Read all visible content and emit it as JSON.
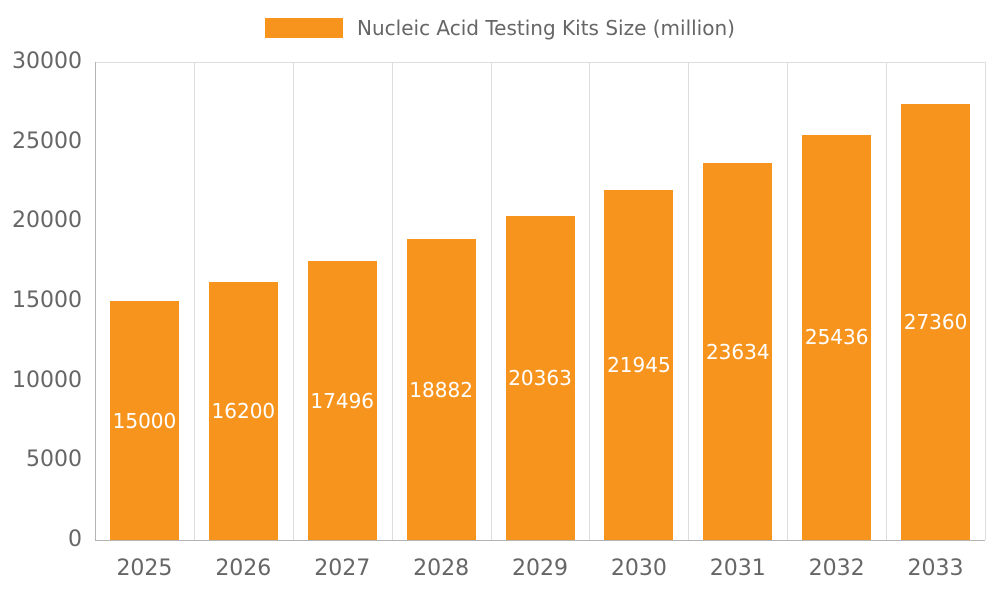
{
  "page": {
    "background": "#ffffff"
  },
  "chart_data": {
    "type": "bar",
    "title": "Nucleic Acid Testing Kits Size (million)",
    "categories": [
      "2025",
      "2026",
      "2027",
      "2028",
      "2029",
      "2030",
      "2031",
      "2032",
      "2033"
    ],
    "values": [
      15000,
      16200,
      17496,
      18882,
      20363,
      21945,
      23634,
      25436,
      27360
    ],
    "value_labels": [
      "15000",
      "16200",
      "17496",
      "18882",
      "20363",
      "21945",
      "23634",
      "25436",
      "27360"
    ],
    "xlabel": "",
    "ylabel": "",
    "ylim": [
      0,
      30000
    ],
    "yticks": [
      0,
      5000,
      10000,
      15000,
      20000,
      25000,
      30000
    ],
    "grid": "vertical",
    "legend_position": "top-center",
    "bar_color": "#f7941e",
    "bar_label_color": "#ffffff",
    "axis_text_color": "#666666",
    "grid_color": "#dddddd",
    "axis_line_color": "#b3b3b3"
  }
}
